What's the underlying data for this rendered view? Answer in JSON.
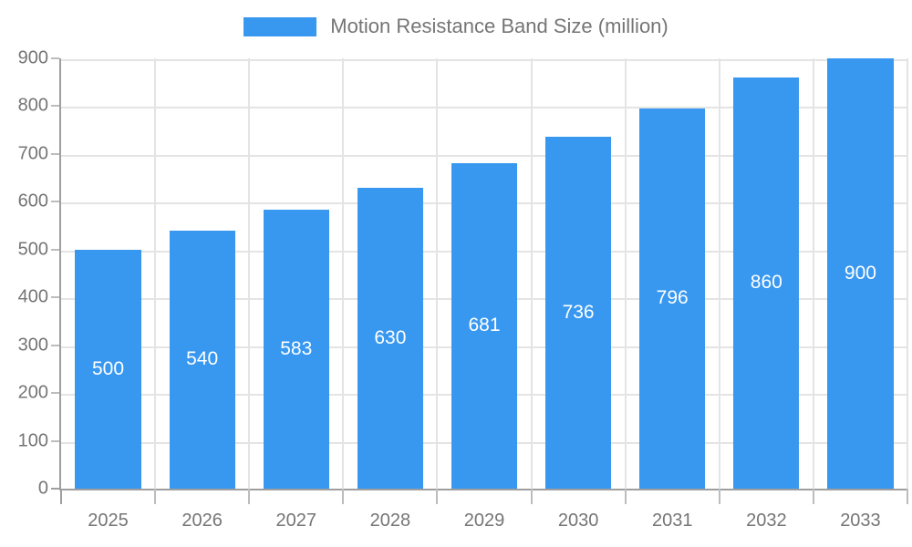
{
  "chart_data": {
    "type": "bar",
    "title": "",
    "legend": {
      "label": "Motion Resistance Band Size (million)",
      "position": "top"
    },
    "categories": [
      "2025",
      "2026",
      "2027",
      "2028",
      "2029",
      "2030",
      "2031",
      "2032",
      "2033"
    ],
    "series": [
      {
        "name": "Motion Resistance Band Size (million)",
        "values": [
          500,
          540,
          583,
          630,
          681,
          736,
          796,
          860,
          900
        ]
      }
    ],
    "bar_value_labels": [
      "500",
      "540",
      "583",
      "630",
      "681",
      "736",
      "796",
      "860",
      "900"
    ],
    "xlabel": "",
    "ylabel": "",
    "ylim": [
      0,
      900
    ],
    "yticks": [
      0,
      100,
      200,
      300,
      400,
      500,
      600,
      700,
      800,
      900
    ],
    "grid": {
      "horizontal": true,
      "vertical": true
    },
    "bar_width_fraction": 0.7,
    "colors": {
      "bar": "#3898F0",
      "gridline": "#E4E4E4",
      "axis": "#9E9E9E",
      "tick": "#BDBDBD",
      "tick_label": "#757575",
      "legend_text": "#757575",
      "bar_label": "#FFFFFF",
      "background": "#FFFFFF"
    }
  }
}
